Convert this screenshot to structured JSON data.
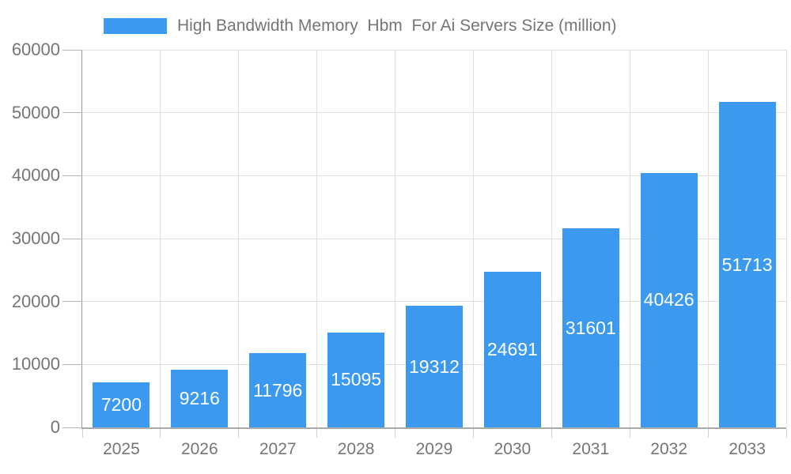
{
  "chart_data": {
    "type": "bar",
    "title": "High Bandwidth Memory  Hbm  For Ai Servers Size (million)",
    "categories": [
      "2025",
      "2026",
      "2027",
      "2028",
      "2029",
      "2030",
      "2031",
      "2032",
      "2033"
    ],
    "values": [
      7200,
      9216,
      11796,
      15095,
      19312,
      24691,
      31601,
      40426,
      51713
    ],
    "xlabel": "",
    "ylabel": "",
    "ylim": [
      0,
      60000
    ],
    "y_ticks": [
      0,
      10000,
      20000,
      30000,
      40000,
      50000,
      60000
    ],
    "grid": true,
    "legend_position": "top",
    "bar_labels_inside": true
  },
  "colors": {
    "bar": "#3B9AEF",
    "bar_label": "#FFFFFF",
    "title_text": "#757575",
    "axis_text": "#757575",
    "gridline": "#E0E0E0",
    "y_axis_line": "#999999",
    "x_axis_line": "#AAAAAA",
    "y_tick": "#B3B3B3",
    "x_tick": "#CCCCCC",
    "background": "#FFFFFF"
  }
}
